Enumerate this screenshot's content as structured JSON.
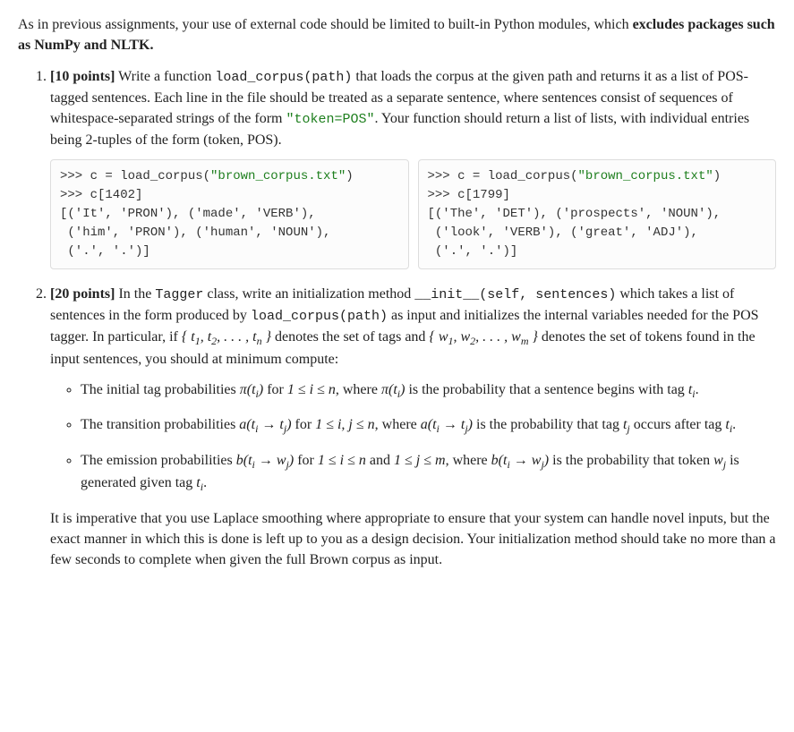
{
  "intro": "As in previous assignments, your use of external code should be limited to built-in Python modules, which ",
  "intro_bold": "excludes packages such as NumPy and NLTK.",
  "q1": {
    "points": "[10 points]",
    "t1": " Write a function ",
    "fn": "load_corpus(path)",
    "t2": " that loads the corpus at the given path and returns it as a list of POS-tagged sentences. Each line in the file should be treated as a separate sentence, where sentences consist of sequences of whitespace-separated strings of the form ",
    "form": "\"token=POS\"",
    "t3": ". Your function should return a list of lists, with individual entries being 2-tuples of the form (token, POS)."
  },
  "code_left": {
    "l1a": ">>> c = load_corpus(",
    "l1s": "\"brown_corpus.txt\"",
    "l1b": ")",
    "l2": ">>> c[1402]",
    "l3": "[('It', 'PRON'), ('made', 'VERB'),",
    "l4": " ('him', 'PRON'), ('human', 'NOUN'),",
    "l5": " ('.', '.')]"
  },
  "code_right": {
    "l1a": ">>> c = load_corpus(",
    "l1s": "\"brown_corpus.txt\"",
    "l1b": ")",
    "l2": ">>> c[1799]",
    "l3": "[('The', 'DET'), ('prospects', 'NOUN'),",
    "l4": " ('look', 'VERB'), ('great', 'ADJ'),",
    "l5": " ('.', '.')]"
  },
  "q2": {
    "points": "[20 points]",
    "t1": " In the ",
    "cls": "Tagger",
    "t2": " class, write an initialization method ",
    "init": "__init__(self, sentences)",
    "t3": " which takes a list of sentences in the form produced by ",
    "fn": "load_corpus(path)",
    "t4": " as input and initializes the internal variables needed for the POS tagger. In particular, if ",
    "set_t_open": "{ t",
    "set_t_mid": ", t",
    "set_t_dots": ", . . . , t",
    "set_t_close": " }",
    "t5": " denotes the set of tags and ",
    "set_w_open": "{ w",
    "set_w_mid": ", w",
    "set_w_dots": ", . . . , w",
    "set_w_close": " }",
    "t6": " denotes the set of tokens found in the input sentences, you should at minimum compute:"
  },
  "bullet1": {
    "t1": "The initial tag probabilities ",
    "pi": "π(t",
    "pi_close": ")",
    "t2": " for ",
    "rng": "1 ≤ i ≤ n",
    "t3": ", where ",
    "t4": " is the probability that a sentence begins with tag ",
    "tag": "t",
    "t5": "."
  },
  "bullet2": {
    "t1": "The transition probabilities ",
    "a": "a(t",
    "arrow": " → t",
    "close": ")",
    "t2": " for ",
    "rng": "1 ≤ i, j ≤ n",
    "t3": ", where ",
    "t4": " is the probability that tag ",
    "tj": "t",
    "t5": " occurs after tag ",
    "ti": "t",
    "t6": "."
  },
  "bullet3": {
    "t1": "The emission probabilities ",
    "b": "b(t",
    "arrow": " → w",
    "close": ")",
    "t2": " for ",
    "rng1": "1 ≤ i ≤ n",
    "and": " and ",
    "rng2": "1 ≤ j ≤ m",
    "t3": ", where ",
    "t4": " is the probability that token ",
    "wj": "w",
    "t5": " is generated given tag ",
    "ti": "t",
    "t6": "."
  },
  "closing": "It is imperative that you use Laplace smoothing where appropriate to ensure that your system can handle novel inputs, but the exact manner in which this is done is left up to you as a design decision. Your initialization method should take no more than a few seconds to complete when given the full Brown corpus as input.",
  "subs": {
    "one": "1",
    "two": "2",
    "i": "i",
    "j": "j",
    "n": "n",
    "m": "m"
  }
}
